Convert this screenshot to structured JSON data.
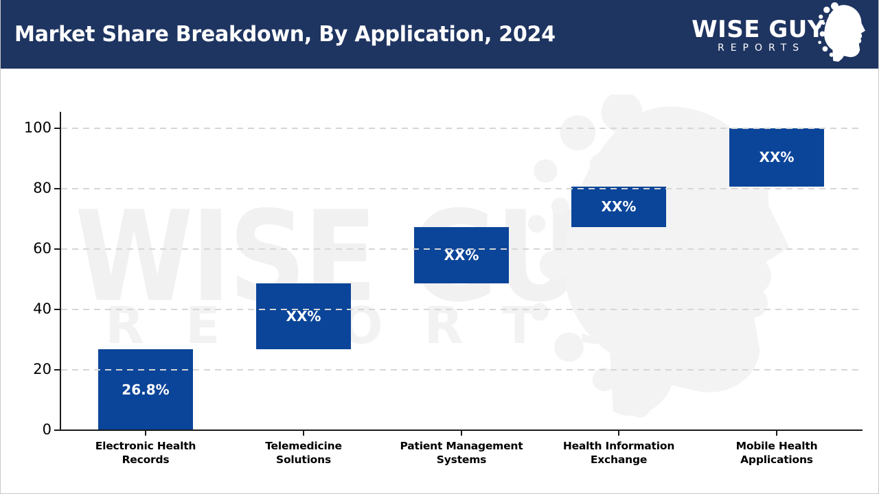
{
  "header": {
    "title": "Market Share Breakdown, By Application, 2024",
    "logo": {
      "brand": "WISE GUY",
      "sub": "REPORTS"
    }
  },
  "watermark": {
    "brand": "WISE GUY",
    "sub": "REPORTS"
  },
  "colors": {
    "header_bg": "#1e3461",
    "bar": "#0b4599",
    "bar_label_text": "#ffffff",
    "axis": "#1a1a1a",
    "grid": "#d6d6d6",
    "tick_text": "#000000",
    "watermark": "#f1f1f1",
    "frame_border": "#c9c9c9"
  },
  "chart_data": {
    "type": "bar",
    "subtype": "waterfall",
    "title": "Market Share Breakdown, By Application, 2024",
    "categories": [
      [
        "Electronic Health",
        "Records"
      ],
      [
        "Telemedicine",
        "Solutions"
      ],
      [
        "Patient Management",
        "Systems"
      ],
      [
        "Health Information",
        "Exchange"
      ],
      [
        "Mobile Health",
        "Applications"
      ]
    ],
    "segments": [
      {
        "start": 0,
        "end": 26.8,
        "label": "26.8%"
      },
      {
        "start": 26.8,
        "end": 48.6,
        "label": "XX%"
      },
      {
        "start": 48.6,
        "end": 67.3,
        "label": "XX%"
      },
      {
        "start": 67.3,
        "end": 80.7,
        "label": "XX%"
      },
      {
        "start": 80.7,
        "end": 100,
        "label": "XX%"
      }
    ],
    "xlabel": "",
    "ylabel": "",
    "ylim": [
      0,
      100
    ],
    "yticks": [
      0,
      20,
      40,
      60,
      80,
      100
    ],
    "grid": "horizontal-dashed-above-bars",
    "legend": null
  }
}
